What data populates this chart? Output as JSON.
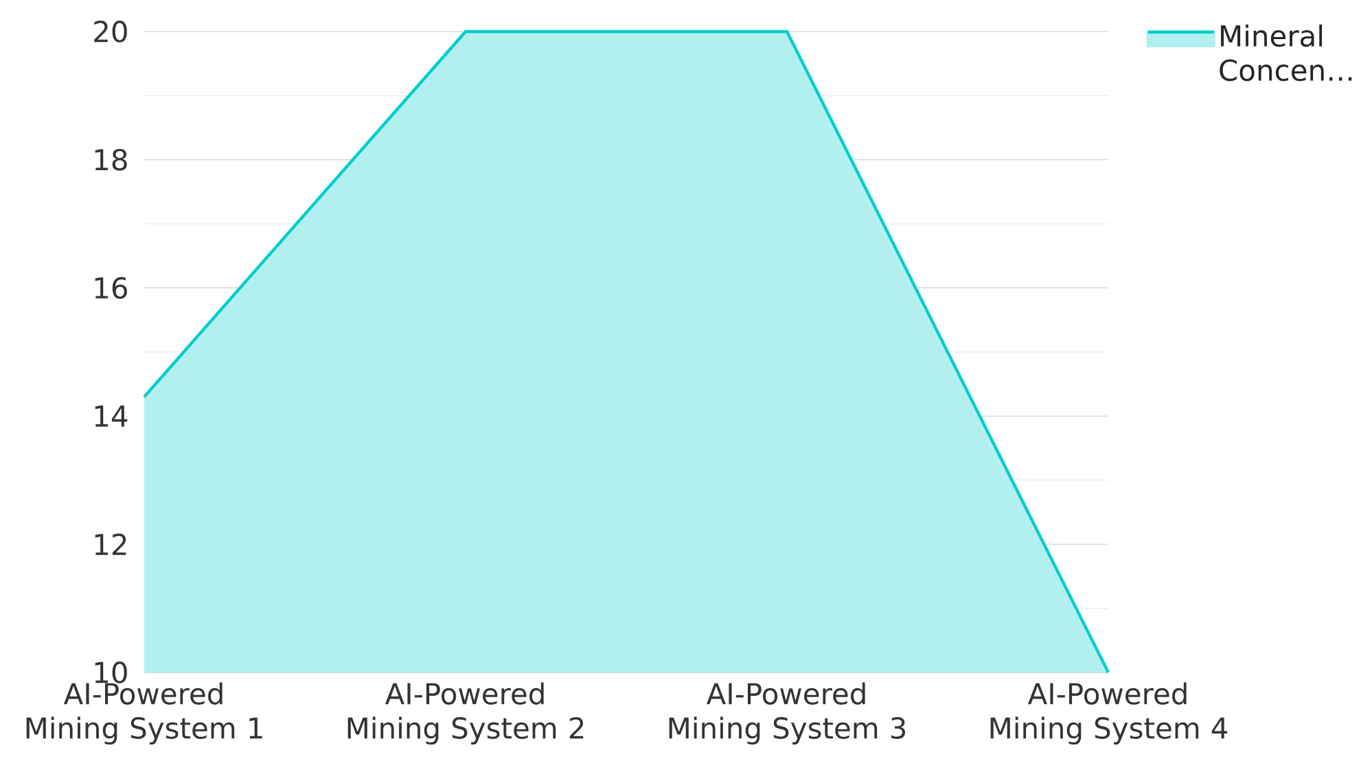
{
  "chart_data": {
    "type": "area",
    "categories": [
      "AI-Powered Mining System 1",
      "AI-Powered Mining System 2",
      "AI-Powered Mining System 3",
      "AI-Powered Mining System 4"
    ],
    "series": [
      {
        "name": "Mineral Concen…",
        "color": "#00cdcd",
        "values": [
          14.3,
          20,
          20,
          10
        ]
      }
    ],
    "ylim": [
      10,
      20
    ],
    "yticks": [
      10,
      12,
      14,
      16,
      18,
      20
    ],
    "grid": "y",
    "legend": "top right"
  }
}
